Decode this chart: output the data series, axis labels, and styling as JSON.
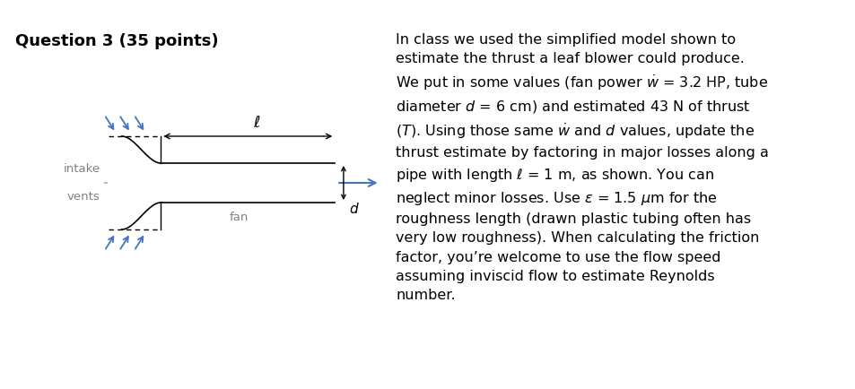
{
  "title": "Question 3 (35 points)",
  "title_fontsize": 13,
  "title_bold": true,
  "bg_color": "#ffffff",
  "diagram": {
    "intake_label_line1": "intake",
    "intake_label_line2": "vents",
    "fan_label": "fan",
    "arrow_color": "#4472C4",
    "line_color": "#000000",
    "label_color": "#808080"
  },
  "text_fontsize": 11.5,
  "label_color": "#808080"
}
